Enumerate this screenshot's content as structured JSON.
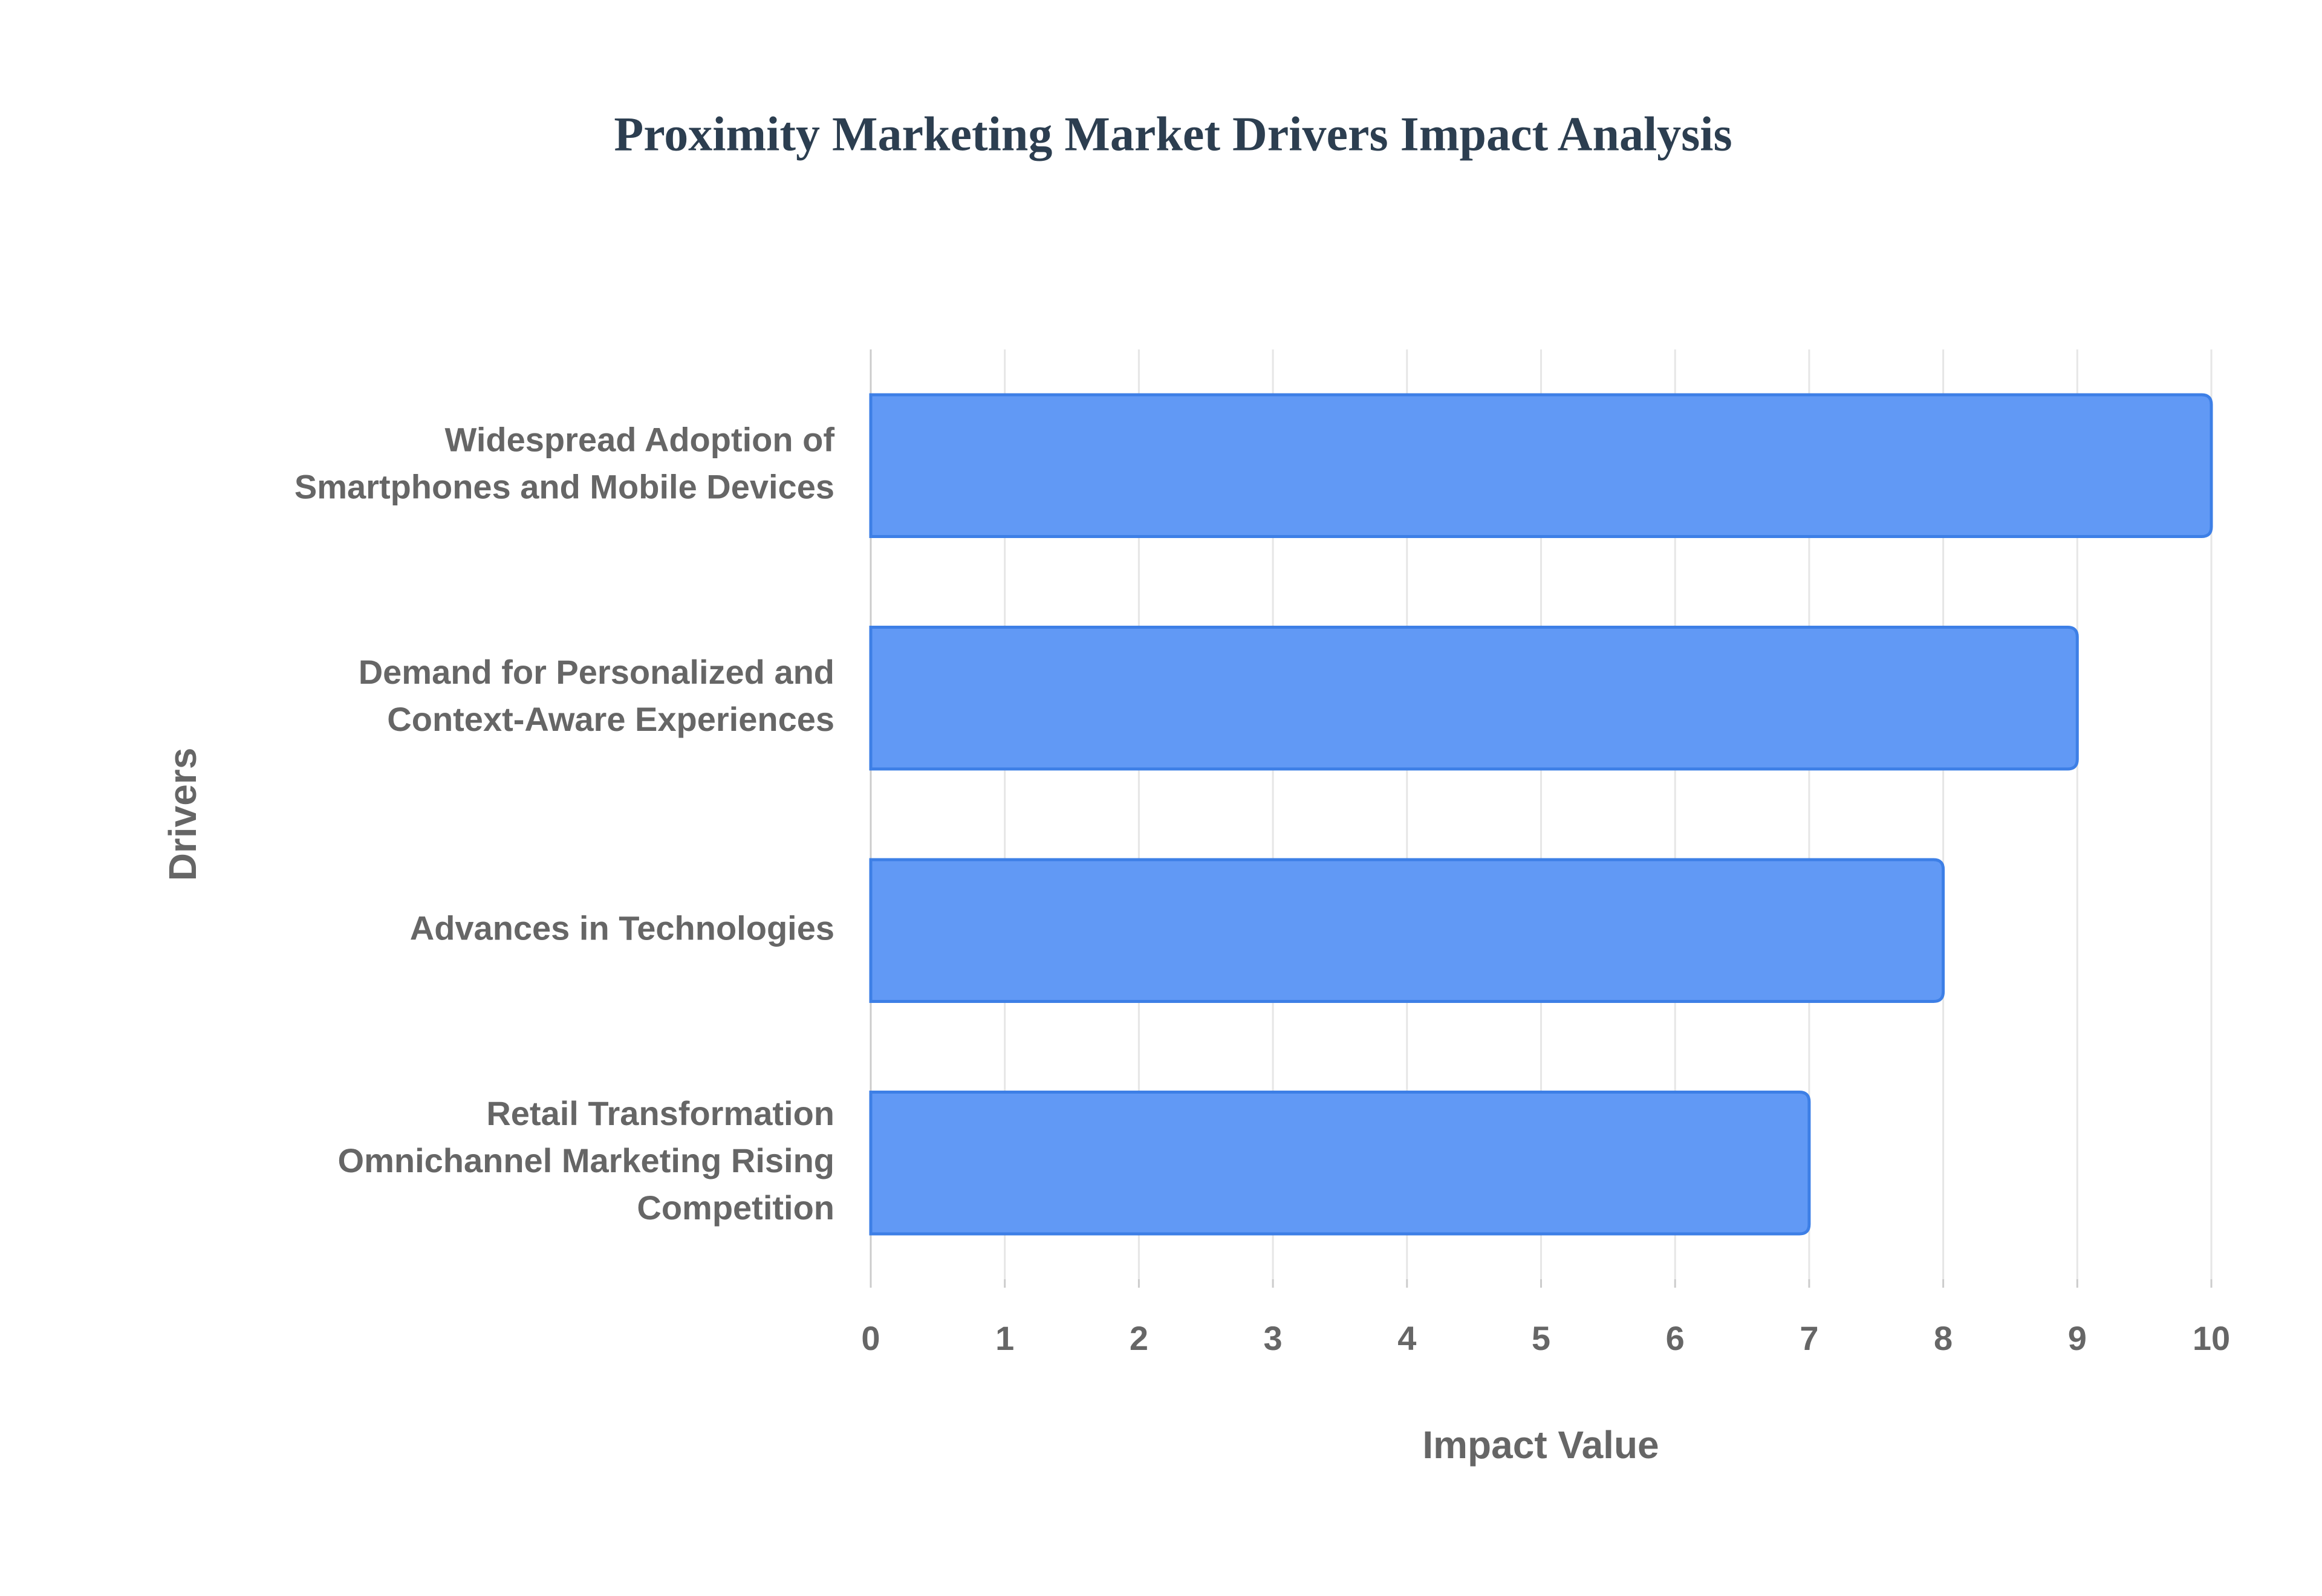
{
  "chart_data": {
    "type": "bar",
    "orientation": "horizontal",
    "title": "Proximity Marketing Market Drivers Impact Analysis",
    "x_label": "Impact Value",
    "y_label": "Drivers",
    "categories": [
      "Widespread Adoption of Smartphones and Mobile Devices",
      "Demand for Personalized and Context-Aware Experiences",
      "Advances in Technologies",
      "Retail Transformation Omnichannel Marketing Rising Competition"
    ],
    "values": [
      10,
      9,
      8,
      7
    ],
    "color": "#6199f5",
    "edge_color": "#3d7fe6",
    "xlim": [
      0,
      10
    ],
    "xticks": [
      0,
      1,
      2,
      3,
      4,
      5,
      6,
      7,
      8,
      9,
      10
    ],
    "grid": true
  }
}
